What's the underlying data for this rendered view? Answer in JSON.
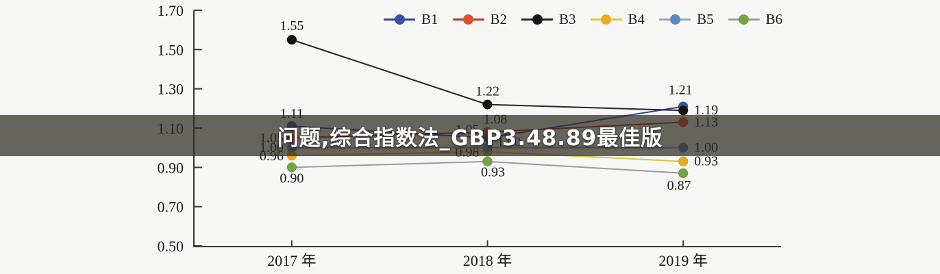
{
  "figure": {
    "background_color": "#f7f7f6",
    "axis_color": "#3a3a3a",
    "label_color": "#1a1a1a"
  },
  "overlay": {
    "text": "问题,综合指数法_GBP3.48.89最佳版",
    "band_color": "#6b6357",
    "text_color": "#ffffff"
  },
  "chart_data": {
    "type": "line",
    "title": "",
    "xlabel": "",
    "ylabel": "",
    "categories": [
      "2017 年",
      "2018 年",
      "2019 年"
    ],
    "series": [
      {
        "name": "B1",
        "values": [
          1.11,
          1.05,
          1.21
        ],
        "marker_color": "#3A53A4",
        "line_color": "#2F4590"
      },
      {
        "name": "B2",
        "values": [
          1.05,
          1.08,
          1.13
        ],
        "marker_color": "#E0502A",
        "line_color": "#B23A28"
      },
      {
        "name": "B3",
        "values": [
          1.55,
          1.22,
          1.19
        ],
        "marker_color": "#141414",
        "line_color": "#262626"
      },
      {
        "name": "B4",
        "values": [
          0.96,
          0.98,
          0.93
        ],
        "marker_color": "#EFA91F",
        "line_color": "#D9C83E"
      },
      {
        "name": "B5",
        "values": [
          1.0,
          1.0,
          1.0
        ],
        "marker_color": "#5E87C4",
        "line_color": "#98A6B8"
      },
      {
        "name": "B6",
        "values": [
          0.9,
          0.93,
          0.87
        ],
        "marker_color": "#74A444",
        "line_color": "#9C9C9C"
      }
    ],
    "ylim": [
      0.5,
      1.7
    ],
    "ytick_step": 0.2,
    "ytick_labels": [
      "0.50",
      "0.70",
      "0.90",
      "1.10",
      "1.30",
      "1.50",
      "1.70"
    ],
    "data_labels": true,
    "grid": false,
    "legend_position": "top"
  }
}
